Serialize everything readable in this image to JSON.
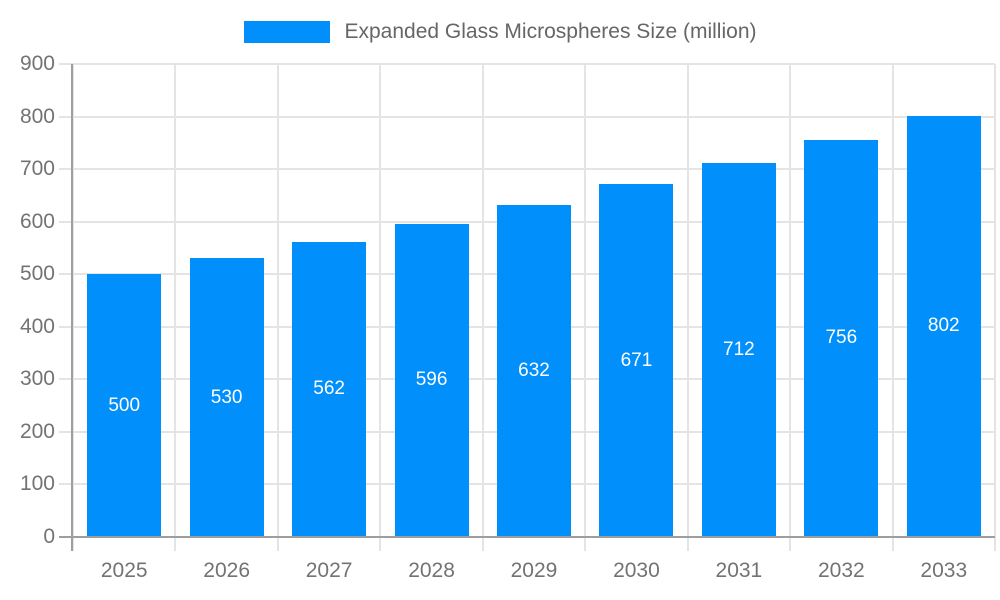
{
  "chart_data": {
    "type": "bar",
    "title": "Expanded Glass Microspheres Size (million)",
    "legend": {
      "position": "top",
      "entries": [
        {
          "label": "Expanded Glass Microspheres Size (million)",
          "color": "#008FFB"
        }
      ]
    },
    "categories": [
      "2025",
      "2026",
      "2027",
      "2028",
      "2029",
      "2030",
      "2031",
      "2032",
      "2033"
    ],
    "series": [
      {
        "name": "Expanded Glass Microspheres Size (million)",
        "values": [
          500,
          530,
          562,
          596,
          632,
          671,
          712,
          756,
          802
        ]
      }
    ],
    "data_labels": [
      "500",
      "530",
      "562",
      "596",
      "632",
      "671",
      "712",
      "756",
      "802"
    ],
    "xlabel": "",
    "ylabel": "",
    "ylim": [
      0,
      900
    ],
    "yticks": [
      0,
      100,
      200,
      300,
      400,
      500,
      600,
      700,
      800,
      900
    ],
    "grid": true
  },
  "colors": {
    "bar": "#008FFB",
    "axis_line": "#9e9e9e",
    "gridline": "#e4e4e4",
    "tick_label": "#737373",
    "legend_text": "#666666",
    "bar_label": "#ffffff",
    "background": "#ffffff"
  }
}
